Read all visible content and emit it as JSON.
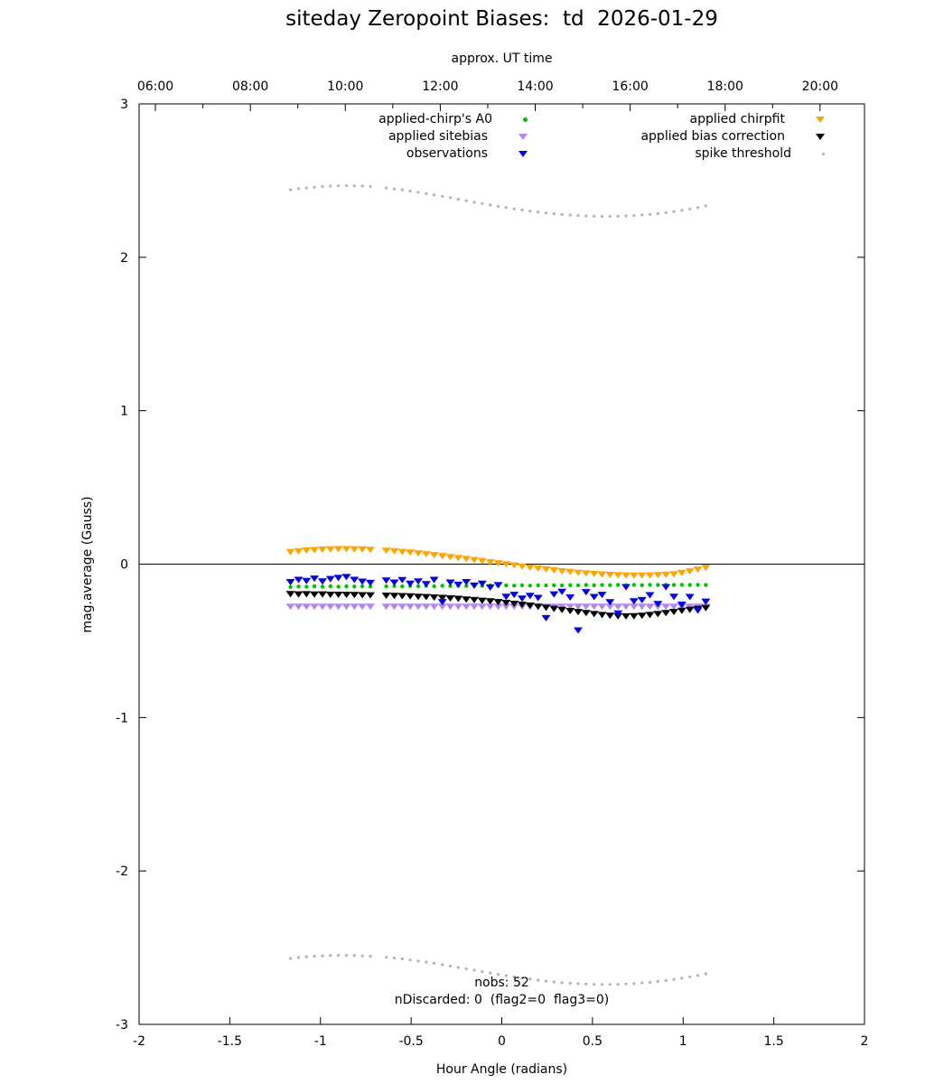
{
  "title": "siteday Zeropoint Biases:  td  2026-01-29",
  "annotations": {
    "nobs_text": "nobs: 52",
    "ndiscarded_text": "nDiscarded: 0  (flag2=0  flag3=0)"
  },
  "legend": {
    "items": [
      {
        "label": "applied-chirp's A0",
        "marker": "dot",
        "color": "#00c000",
        "size": 5,
        "col": "left",
        "row": 0
      },
      {
        "label": "applied chirpfit",
        "marker": "triangle-down",
        "color": "#ffa500",
        "col": "right",
        "row": 0
      },
      {
        "label": "applied sitebias",
        "marker": "triangle-down",
        "color": "#b287f0",
        "col": "left",
        "row": 1
      },
      {
        "label": "applied bias correction",
        "marker": "triangle-down",
        "color": "#000000",
        "col": "right",
        "row": 1
      },
      {
        "label": "observations",
        "marker": "triangle-down",
        "color": "#0000e6",
        "col": "left",
        "row": 2
      },
      {
        "label": "spike threshold",
        "marker": "dot",
        "color": "#b3b3b3",
        "size": 3,
        "col": "right",
        "row": 2
      }
    ]
  },
  "chart_data": {
    "type": "scatter",
    "title": "siteday Zeropoint Biases:  td  2026-01-29",
    "xlabel": "Hour Angle (radians)",
    "x2label": "approx. UT time",
    "ylabel": "mag.average (Gauss)",
    "xlim": [
      -2,
      2
    ],
    "ylim": [
      -3,
      3
    ],
    "grid": false,
    "zero_line": true,
    "x_ticks": [
      -2,
      -1.5,
      -1,
      -0.5,
      0,
      0.5,
      1,
      1.5,
      2
    ],
    "x_tick_labels": [
      "-2",
      "-1.5",
      "-1",
      "-0.5",
      "0",
      "0.5",
      "1",
      "1.5",
      "2"
    ],
    "y_ticks": [
      -3,
      -2,
      -1,
      0,
      1,
      2,
      3
    ],
    "y_tick_labels": [
      "-3",
      "-2",
      "-1",
      "0",
      "1",
      "2",
      "3"
    ],
    "x2_ticks": [
      {
        "utc": "06:00",
        "ha": -1.9101,
        "major": true
      },
      {
        "utc": "07:00",
        "ha": -1.6482,
        "major": false
      },
      {
        "utc": "08:00",
        "ha": -1.3865,
        "major": true
      },
      {
        "utc": "09:00",
        "ha": -1.1247,
        "major": false
      },
      {
        "utc": "10:00",
        "ha": -0.8629,
        "major": true
      },
      {
        "utc": "11:00",
        "ha": -0.6011,
        "major": false
      },
      {
        "utc": "12:00",
        "ha": -0.3393,
        "major": true
      },
      {
        "utc": "13:00",
        "ha": -0.0775,
        "major": false
      },
      {
        "utc": "14:00",
        "ha": 0.1843,
        "major": true
      },
      {
        "utc": "15:00",
        "ha": 0.4461,
        "major": false
      },
      {
        "utc": "16:00",
        "ha": 0.7079,
        "major": true
      },
      {
        "utc": "17:00",
        "ha": 0.9697,
        "major": false
      },
      {
        "utc": "18:00",
        "ha": 1.2315,
        "major": true
      },
      {
        "utc": "19:00",
        "ha": 1.4933,
        "major": false
      },
      {
        "utc": "20:00",
        "ha": 1.7551,
        "major": true
      }
    ],
    "x": [
      -1.165,
      -1.121,
      -1.077,
      -1.033,
      -0.989,
      -0.945,
      -0.901,
      -0.857,
      -0.813,
      -0.769,
      -0.725,
      -0.637,
      -0.593,
      -0.549,
      -0.505,
      -0.461,
      -0.417,
      -0.373,
      -0.328,
      -0.284,
      -0.24,
      -0.196,
      -0.152,
      -0.108,
      -0.064,
      -0.02,
      0.024,
      0.068,
      0.112,
      0.156,
      0.2,
      0.244,
      0.288,
      0.332,
      0.377,
      0.421,
      0.465,
      0.509,
      0.553,
      0.597,
      0.641,
      0.685,
      0.729,
      0.773,
      0.817,
      0.861,
      0.905,
      0.949,
      0.993,
      1.037,
      1.081,
      1.125
    ],
    "series": [
      {
        "id": "a0",
        "name": "applied-chirp's A0",
        "marker": "dot",
        "r": 2.2,
        "color": "#00c000",
        "values": [
          -0.149,
          -0.146,
          -0.148,
          -0.145,
          -0.147,
          -0.144,
          -0.147,
          -0.145,
          -0.146,
          -0.144,
          -0.146,
          -0.145,
          -0.143,
          -0.145,
          -0.142,
          -0.144,
          -0.142,
          -0.144,
          -0.141,
          -0.143,
          -0.141,
          -0.142,
          -0.14,
          -0.142,
          -0.139,
          -0.141,
          -0.139,
          -0.14,
          -0.138,
          -0.14,
          -0.138,
          -0.139,
          -0.137,
          -0.139,
          -0.137,
          -0.138,
          -0.136,
          -0.138,
          -0.136,
          -0.137,
          -0.136,
          -0.137,
          -0.135,
          -0.137,
          -0.135,
          -0.136,
          -0.135,
          -0.136,
          -0.135,
          -0.136,
          -0.135,
          -0.136
        ]
      },
      {
        "id": "chirpfit",
        "name": "applied chirpfit",
        "marker": "triangle-down",
        "color": "#ffa500",
        "values": [
          0.081,
          0.086,
          0.091,
          0.094,
          0.097,
          0.099,
          0.1,
          0.1,
          0.099,
          0.098,
          0.096,
          0.09,
          0.087,
          0.082,
          0.078,
          0.073,
          0.067,
          0.061,
          0.055,
          0.049,
          0.042,
          0.036,
          0.029,
          0.022,
          0.015,
          0.008,
          0.001,
          -0.006,
          -0.013,
          -0.02,
          -0.026,
          -0.032,
          -0.038,
          -0.044,
          -0.049,
          -0.054,
          -0.058,
          -0.062,
          -0.065,
          -0.068,
          -0.07,
          -0.071,
          -0.072,
          -0.072,
          -0.071,
          -0.069,
          -0.067,
          -0.064,
          -0.055,
          -0.045,
          -0.033,
          -0.021
        ]
      },
      {
        "id": "sitebias",
        "name": "applied sitebias",
        "marker": "triangle-down",
        "color": "#b287f0",
        "values": [
          -0.275,
          -0.275,
          -0.275,
          -0.275,
          -0.275,
          -0.275,
          -0.275,
          -0.275,
          -0.275,
          -0.275,
          -0.275,
          -0.275,
          -0.275,
          -0.275,
          -0.275,
          -0.275,
          -0.275,
          -0.275,
          -0.275,
          -0.275,
          -0.275,
          -0.275,
          -0.275,
          -0.275,
          -0.275,
          -0.275,
          -0.275,
          -0.275,
          -0.275,
          -0.275,
          -0.275,
          -0.275,
          -0.275,
          -0.275,
          -0.275,
          -0.275,
          -0.275,
          -0.275,
          -0.275,
          -0.275,
          -0.275,
          -0.275,
          -0.275,
          -0.275,
          -0.275,
          -0.275,
          -0.275,
          -0.275,
          -0.275,
          -0.275,
          -0.275,
          -0.275
        ]
      },
      {
        "id": "biascorr",
        "name": "applied bias correction",
        "marker": "triangle-down",
        "color": "#000000",
        "values": [
          -0.193,
          -0.195,
          -0.194,
          -0.196,
          -0.195,
          -0.197,
          -0.197,
          -0.198,
          -0.199,
          -0.2,
          -0.201,
          -0.203,
          -0.205,
          -0.206,
          -0.208,
          -0.21,
          -0.212,
          -0.215,
          -0.218,
          -0.221,
          -0.224,
          -0.228,
          -0.232,
          -0.236,
          -0.24,
          -0.245,
          -0.25,
          -0.256,
          -0.262,
          -0.268,
          -0.275,
          -0.282,
          -0.289,
          -0.296,
          -0.303,
          -0.31,
          -0.317,
          -0.323,
          -0.329,
          -0.334,
          -0.337,
          -0.338,
          -0.337,
          -0.334,
          -0.329,
          -0.323,
          -0.316,
          -0.309,
          -0.302,
          -0.295,
          -0.289,
          -0.284
        ]
      },
      {
        "id": "observations",
        "name": "observations",
        "marker": "triangle-down",
        "color": "#0000e6",
        "values": [
          -0.115,
          -0.1,
          -0.108,
          -0.092,
          -0.11,
          -0.095,
          -0.088,
          -0.082,
          -0.1,
          -0.112,
          -0.12,
          -0.105,
          -0.118,
          -0.102,
          -0.125,
          -0.11,
          -0.128,
          -0.1,
          -0.245,
          -0.118,
          -0.132,
          -0.115,
          -0.138,
          -0.125,
          -0.15,
          -0.135,
          -0.21,
          -0.198,
          -0.222,
          -0.205,
          -0.218,
          -0.35,
          -0.195,
          -0.178,
          -0.215,
          -0.43,
          -0.18,
          -0.212,
          -0.198,
          -0.246,
          -0.32,
          -0.148,
          -0.24,
          -0.232,
          -0.2,
          -0.258,
          -0.148,
          -0.21,
          -0.262,
          -0.212,
          -0.3,
          -0.242
        ]
      },
      {
        "id": "spike-upper",
        "name": "spike threshold (upper)",
        "marker": "dot",
        "r": 1.6,
        "color": "#b3b3b3",
        "values": [
          2.44,
          2.447,
          2.452,
          2.457,
          2.461,
          2.464,
          2.466,
          2.467,
          2.466,
          2.464,
          2.461,
          2.452,
          2.446,
          2.44,
          2.432,
          2.424,
          2.416,
          2.407,
          2.397,
          2.388,
          2.378,
          2.369,
          2.359,
          2.35,
          2.341,
          2.332,
          2.324,
          2.316,
          2.308,
          2.301,
          2.295,
          2.289,
          2.284,
          2.279,
          2.275,
          2.272,
          2.27,
          2.268,
          2.267,
          2.267,
          2.268,
          2.27,
          2.272,
          2.276,
          2.28,
          2.285,
          2.291,
          2.298,
          2.306,
          2.315,
          2.324,
          2.335
        ]
      },
      {
        "id": "spike-lower",
        "name": "spike threshold (lower)",
        "marker": "dot",
        "r": 1.6,
        "color": "#b3b3b3",
        "values": [
          -2.57,
          -2.564,
          -2.559,
          -2.556,
          -2.553,
          -2.551,
          -2.55,
          -2.55,
          -2.551,
          -2.553,
          -2.556,
          -2.563,
          -2.568,
          -2.573,
          -2.58,
          -2.587,
          -2.594,
          -2.602,
          -2.611,
          -2.62,
          -2.629,
          -2.638,
          -2.647,
          -2.656,
          -2.665,
          -2.674,
          -2.682,
          -2.69,
          -2.698,
          -2.705,
          -2.712,
          -2.718,
          -2.723,
          -2.728,
          -2.732,
          -2.735,
          -2.737,
          -2.739,
          -2.74,
          -2.74,
          -2.739,
          -2.737,
          -2.734,
          -2.73,
          -2.726,
          -2.72,
          -2.714,
          -2.707,
          -2.699,
          -2.69,
          -2.681,
          -2.671
        ]
      }
    ]
  }
}
